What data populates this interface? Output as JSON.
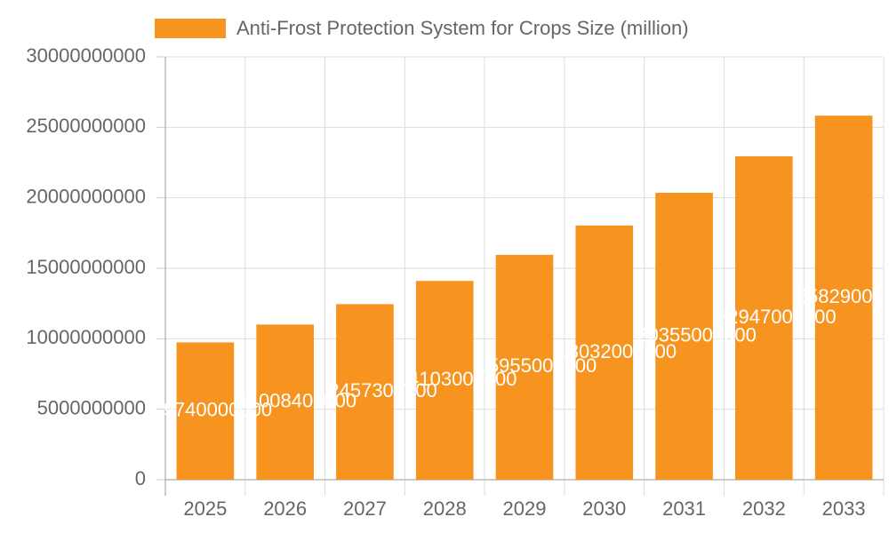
{
  "chart_data": {
    "type": "bar",
    "categories": [
      "2025",
      "2026",
      "2027",
      "2028",
      "2029",
      "2030",
      "2031",
      "2032",
      "2033"
    ],
    "series": [
      {
        "name": "Anti-Frost Protection System for Crops Size (million)",
        "color": "#f7941f",
        "values": [
          9740000000,
          11008400000,
          12457300000,
          14103000000,
          15955000000,
          18032000000,
          20355000000,
          22947000000,
          25829000000
        ]
      }
    ],
    "ylim": [
      0,
      30000000000
    ],
    "yticks": [
      0,
      5000000000,
      10000000000,
      15000000000,
      20000000000,
      25000000000,
      30000000000
    ],
    "grid": true
  }
}
